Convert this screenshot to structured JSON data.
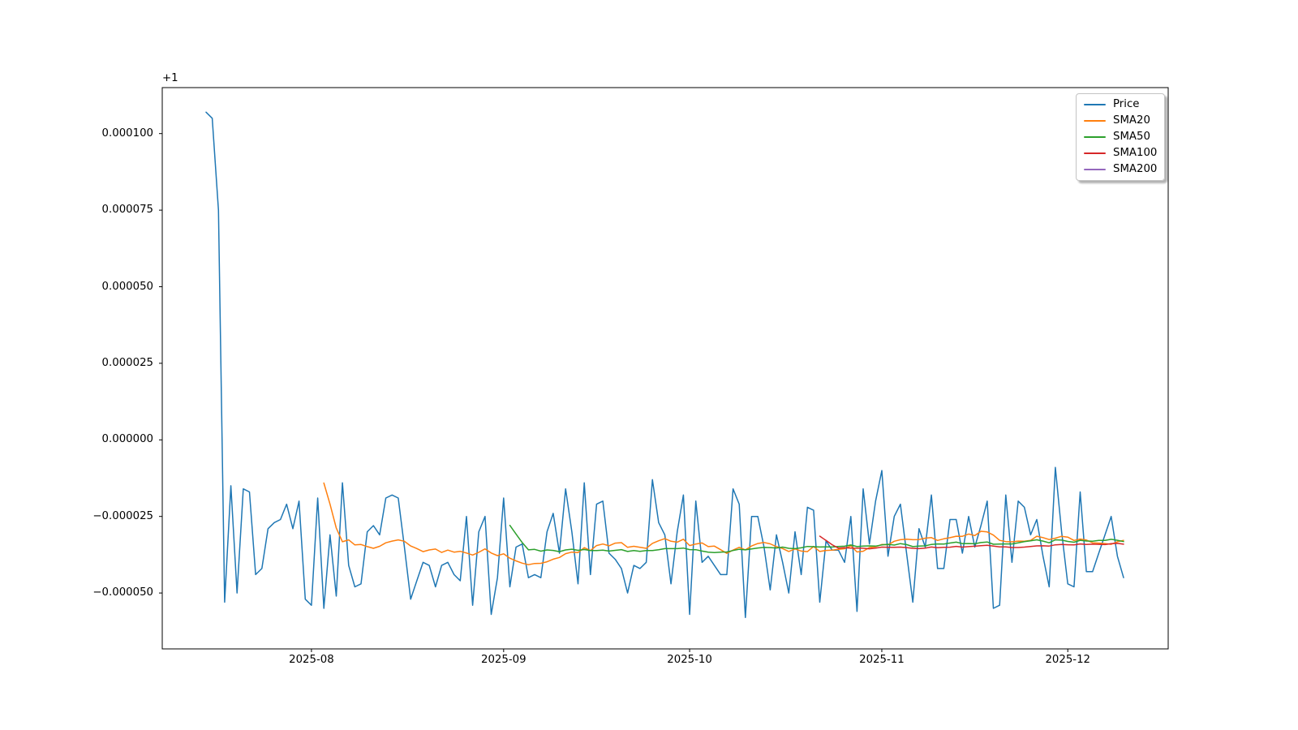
{
  "window": {
    "background": "#ffffff"
  },
  "chart_data": {
    "type": "line",
    "title": "",
    "offset_text": "+1",
    "note": "y axis uses matplotlib offset notation: actual price = 1 + tick value; price series stored as (price - 1) in units of 1e-6; SMA lines are rolling means of the price series",
    "x_axis": {
      "start_date": "2025-07-15",
      "end_date": "2025-12-10",
      "tick_labels": [
        "2025-08",
        "2025-09",
        "2025-10",
        "2025-11",
        "2025-12"
      ],
      "tick_day_indices": [
        17,
        48,
        78,
        109,
        139
      ],
      "grid": false
    },
    "y_axis": {
      "tick_labels": [
        "0.000100",
        "0.000075",
        "0.000050",
        "0.000025",
        "0.000000",
        "−0.000025",
        "−0.000050"
      ],
      "tick_values_micro": [
        100,
        75,
        50,
        25,
        0,
        -25,
        -50
      ],
      "ylim_micro": [
        -68.3,
        115.0
      ],
      "grid": false
    },
    "legend": {
      "position": "upper right",
      "items": [
        "Price",
        "SMA20",
        "SMA50",
        "SMA100",
        "SMA200"
      ]
    },
    "series": [
      {
        "name": "Price",
        "color": "#1f77b4",
        "kind": "price"
      },
      {
        "name": "SMA20",
        "color": "#ff7f0e",
        "kind": "sma",
        "window": 20
      },
      {
        "name": "SMA50",
        "color": "#2ca02c",
        "kind": "sma",
        "window": 50
      },
      {
        "name": "SMA100",
        "color": "#d62728",
        "kind": "sma",
        "window": 100
      },
      {
        "name": "SMA200",
        "color": "#9467bd",
        "kind": "sma",
        "window": 200
      }
    ],
    "price_offset_micro": [
      107,
      105,
      75,
      -53,
      -15,
      -50,
      -16,
      -17,
      -44,
      -42,
      -29,
      -27,
      -26,
      -21,
      -29,
      -20,
      -52,
      -54,
      -19,
      -55,
      -31,
      -51,
      -14,
      -41,
      -48,
      -47,
      -30,
      -28,
      -31,
      -19,
      -18,
      -19,
      -35,
      -52,
      -46,
      -40,
      -41,
      -48,
      -41,
      -40,
      -44,
      -46,
      -25,
      -54,
      -30,
      -25,
      -57,
      -45,
      -19,
      -48,
      -35,
      -34,
      -45,
      -44,
      -45,
      -30,
      -24,
      -37,
      -16,
      -30,
      -47,
      -14,
      -44,
      -21,
      -20,
      -37,
      -39,
      -42,
      -50,
      -41,
      -42,
      -40,
      -13,
      -27,
      -31,
      -47,
      -30,
      -18,
      -57,
      -20,
      -40,
      -38,
      -41,
      -44,
      -44,
      -16,
      -21,
      -58,
      -25,
      -25,
      -35,
      -49,
      -31,
      -40,
      -50,
      -30,
      -44,
      -22,
      -23,
      -53,
      -33,
      -36,
      -36,
      -40,
      -25,
      -56,
      -16,
      -34,
      -20,
      -10,
      -38,
      -25,
      -21,
      -37,
      -53,
      -29,
      -35,
      -18,
      -42,
      -42,
      -26,
      -26,
      -37,
      -25,
      -35,
      -28,
      -20,
      -55,
      -54,
      -18,
      -40,
      -20,
      -22,
      -31,
      -26,
      -38,
      -48,
      -9,
      -30,
      -47,
      -48,
      -17,
      -43,
      -43,
      -37,
      -31,
      -25,
      -38,
      -45
    ]
  }
}
